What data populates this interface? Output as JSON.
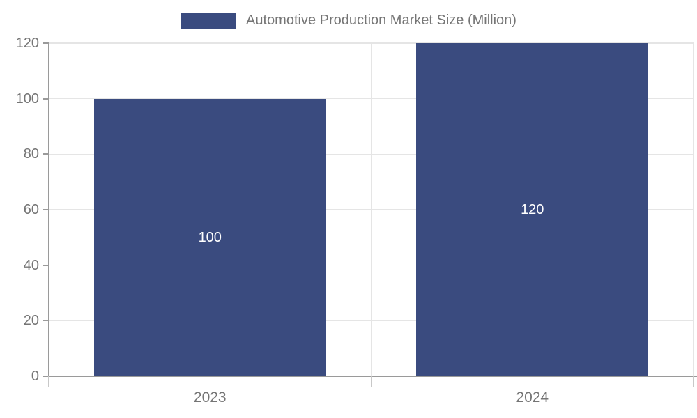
{
  "chart_data": {
    "type": "bar",
    "title": "Automotive Production Market Size (Million)",
    "categories": [
      "2023",
      "2024"
    ],
    "series": [
      {
        "name": "Automotive Production Market Size (Million)",
        "values": [
          100,
          120
        ]
      }
    ],
    "xlabel": "",
    "ylabel": "",
    "ylim": [
      0,
      120
    ],
    "yticks": [
      0,
      20,
      40,
      60,
      80,
      100,
      120
    ],
    "grid": "on",
    "legend_position": "top-center",
    "bar_label_position": "inside-center",
    "colors": {
      "bar": "#3a4b7f",
      "legend_text": "#757575",
      "axis_text": "#757575",
      "axis_line": "#9a9a9a",
      "boundary_tick": "#c8c8c8",
      "gridline": "#e5e5e5",
      "bar_label": "#ffffff",
      "background": "#ffffff"
    }
  }
}
